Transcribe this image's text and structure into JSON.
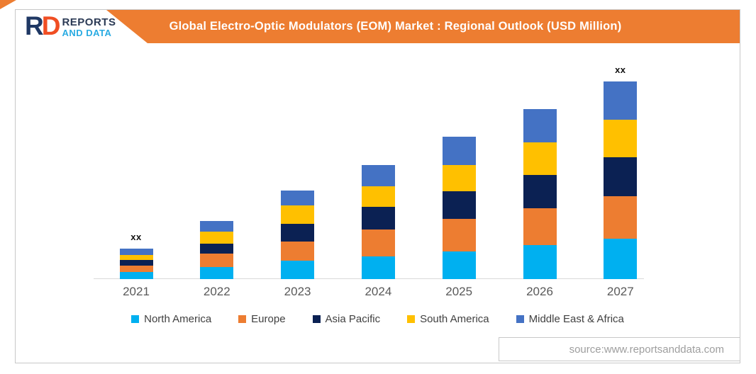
{
  "logo": {
    "mark_r": "R",
    "mark_d": "D",
    "line1": "REPORTS",
    "line2": "AND DATA"
  },
  "banner": {
    "title": "Global Electro-Optic Modulators (EOM) Market : Regional Outlook (USD Million)",
    "bg_color": "#ED7D31"
  },
  "source": {
    "text": "source:www.reportsanddata.com"
  },
  "colors": {
    "accent_orange": "#ED7D31",
    "axis_line": "#d9d9d9",
    "x_label": "#595959",
    "legend_text": "#404040",
    "source_text": "#9e9e9e"
  },
  "chart_data": {
    "type": "bar",
    "stacked": true,
    "title": "Global Electro-Optic Modulators (EOM) Market : Regional Outlook (USD Million)",
    "xlabel": "",
    "ylabel": "USD Million",
    "y_axis_visible": false,
    "grid": false,
    "legend_position": "bottom",
    "categories": [
      "2021",
      "2022",
      "2023",
      "2024",
      "2025",
      "2026",
      "2027"
    ],
    "series": [
      {
        "name": "North America",
        "color": "#00B0F0",
        "values": [
          10,
          17,
          26,
          32,
          39,
          48,
          57
        ]
      },
      {
        "name": "Europe",
        "color": "#ED7D31",
        "values": [
          9,
          19,
          27,
          38,
          46,
          52,
          60
        ]
      },
      {
        "name": "Asia Pacific",
        "color": "#0B2153",
        "values": [
          8,
          14,
          25,
          32,
          39,
          47,
          55
        ]
      },
      {
        "name": "South America",
        "color": "#FFC000",
        "values": [
          7,
          17,
          26,
          29,
          37,
          46,
          53
        ]
      },
      {
        "name": "Middle East & Africa",
        "color": "#4472C4",
        "values": [
          9,
          15,
          21,
          30,
          40,
          47,
          54
        ]
      }
    ],
    "stack_totals": [
      43,
      82,
      125,
      161,
      201,
      240,
      279
    ],
    "bar_top_labels": [
      "xx",
      "",
      "",
      "",
      "",
      "",
      "xx"
    ],
    "values_note": "Actual values are masked as 'xx' on the chart; series values are relative estimates of segment heights."
  }
}
